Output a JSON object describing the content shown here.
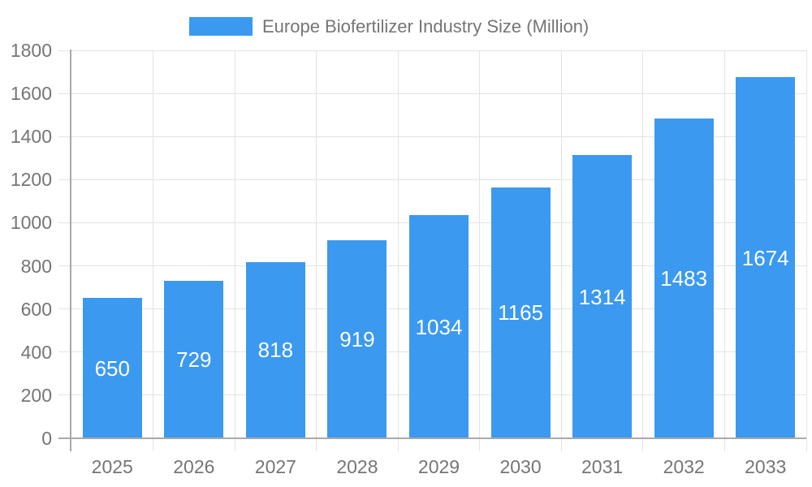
{
  "page": {
    "background": "#ffffff"
  },
  "legend": {
    "label": "Europe Biofertilizer Industry Size (Million)",
    "position": "top-center"
  },
  "chart_data": {
    "type": "bar",
    "title": "Europe Biofertilizer Industry Size (Million)",
    "categories": [
      "2025",
      "2026",
      "2027",
      "2028",
      "2029",
      "2030",
      "2031",
      "2032",
      "2033"
    ],
    "series": [
      {
        "name": "Europe Biofertilizer Industry Size (Million)",
        "values": [
          650,
          729,
          818,
          919,
          1034,
          1165,
          1314,
          1483,
          1674
        ]
      }
    ],
    "value_labels": "inside-center",
    "xlabel": "",
    "ylabel": "",
    "ylim": [
      0,
      1800
    ],
    "ytick_step": 200,
    "yticks": [
      0,
      200,
      400,
      600,
      800,
      1000,
      1200,
      1400,
      1600,
      1800
    ],
    "grid": true,
    "legend_position": "top",
    "colors": {
      "bar": "#3b99f0",
      "value_label": "#ffffff",
      "grid_line": "#e3e3e3",
      "axis_line": "#a9a9a9",
      "tick_label": "#757575"
    }
  }
}
